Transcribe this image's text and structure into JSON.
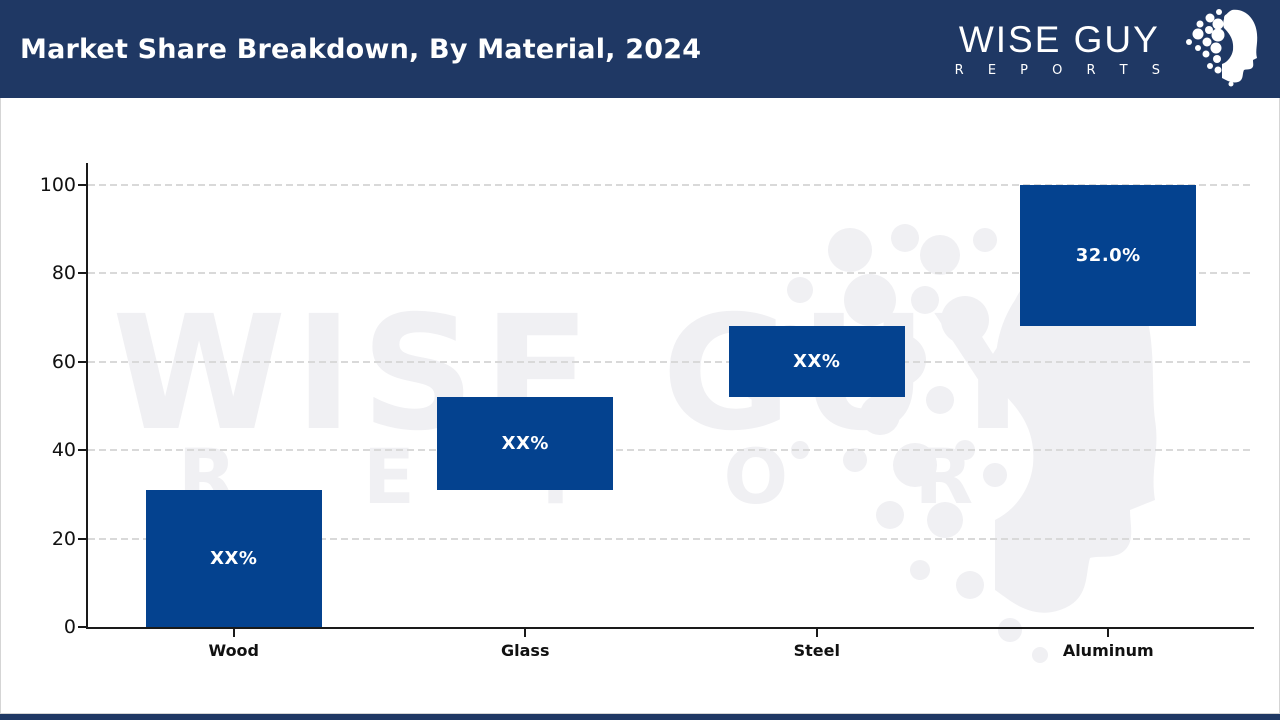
{
  "header": {
    "title": "Market Share Breakdown, By Material, 2024",
    "bg_color": "#1f3864",
    "logo": {
      "line1": "WISE GUY",
      "line2": "R E P O R T S"
    }
  },
  "watermark": {
    "line1": "WISE GUY",
    "line2": "R E P O R T S",
    "color": "#f0f0f3"
  },
  "chart_data": {
    "type": "bar",
    "subtype": "waterfall",
    "title": "Market Share Breakdown, By Material, 2024",
    "categories": [
      "Wood",
      "Glass",
      "Steel",
      "Aluminum"
    ],
    "series": [
      {
        "name": "Market Share (%)",
        "segments": [
          {
            "category": "Wood",
            "start": 0,
            "end": 31,
            "value": 31,
            "label": "XX%"
          },
          {
            "category": "Glass",
            "start": 31,
            "end": 52,
            "value": 21,
            "label": "XX%"
          },
          {
            "category": "Steel",
            "start": 52,
            "end": 68,
            "value": 16,
            "label": "XX%"
          },
          {
            "category": "Aluminum",
            "start": 68,
            "end": 100,
            "value": 32,
            "label": "32.0%"
          }
        ]
      }
    ],
    "y_ticks": [
      0,
      20,
      40,
      60,
      80,
      100
    ],
    "ylim": [
      0,
      105
    ],
    "xlabel": "",
    "ylabel": "",
    "grid": "horizontal-dashed",
    "legend": "none",
    "bar_color": "#04428f",
    "bar_label_color": "#ffffff",
    "grid_color": "#d9d9d9",
    "axis_color": "#1a1a1a"
  },
  "footer": {
    "bg_color": "#1f3864"
  }
}
